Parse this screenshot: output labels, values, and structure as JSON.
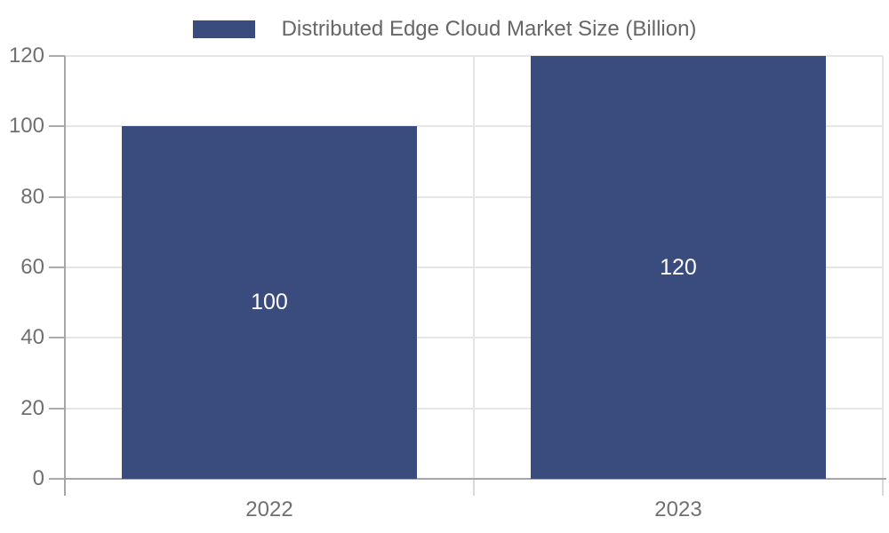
{
  "chart_data": {
    "type": "bar",
    "title": "",
    "legend_label": "Distributed Edge Cloud Market Size (Billion)",
    "categories": [
      "2022",
      "2023"
    ],
    "values": [
      100,
      120
    ],
    "data_labels": [
      "100",
      "120"
    ],
    "xlabel": "",
    "ylabel": "",
    "ylim": [
      0,
      120
    ],
    "yticks": [
      0,
      20,
      40,
      60,
      80,
      100,
      120
    ],
    "grid": true,
    "legend_position": "top-center",
    "bar_width_ratio": 0.72,
    "colors": {
      "bar": "#3A4B7E",
      "bar_label": "#FFFFFF",
      "legend_text": "#666666",
      "tick_label": "#707070",
      "axis_line": "#A6A6A6",
      "tick_mark": "#ABABAB",
      "boundary_tick": "#D9D9D9",
      "gridline": "#E6E6E6",
      "background": "#FFFFFF"
    }
  }
}
